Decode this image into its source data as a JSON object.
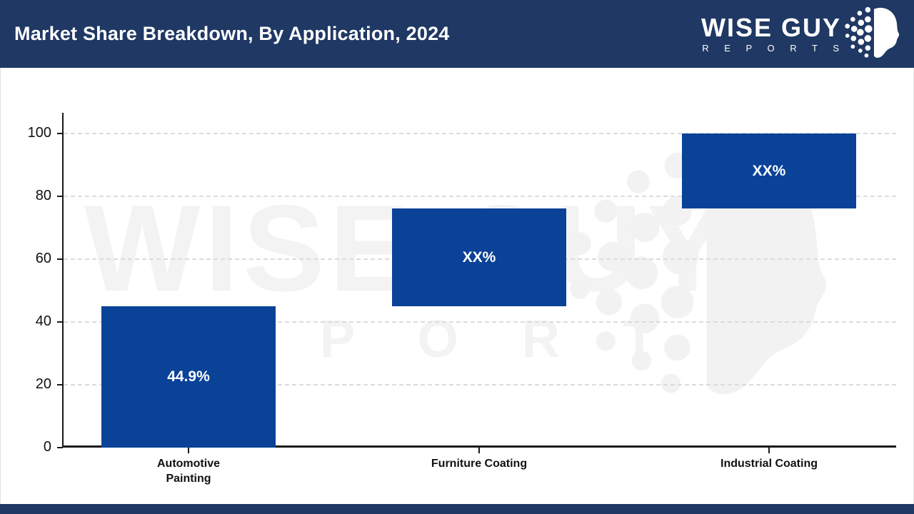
{
  "header": {
    "title": "Market Share Breakdown, By Application, 2024",
    "logo_line1": "WISE GUY",
    "logo_line2": "R E P O R T S"
  },
  "watermark": {
    "line1": "WISE GUY",
    "line2": "R E P O R T S"
  },
  "colors": {
    "header_navy": "#1f3864",
    "bar_blue": "#0a4298",
    "gridline": "#dcdcdc",
    "bar_label": "#ffffff"
  },
  "chart_data": {
    "type": "bar",
    "variant": "floating-waterfall-segments",
    "title": "Market Share Breakdown, By Application, 2024",
    "categories": [
      "Automotive Painting",
      "Furniture Coating",
      "Industrial Coating"
    ],
    "tick_labels": [
      "Automotive\nPainting",
      "Furniture Coating",
      "Industrial Coating"
    ],
    "segments": [
      {
        "category": "Automotive Painting",
        "start": 0,
        "end": 44.9,
        "value": 44.9,
        "label": "44.9%"
      },
      {
        "category": "Furniture Coating",
        "start": 44.9,
        "end": 76.1,
        "value": 31.2,
        "label": "XX%"
      },
      {
        "category": "Industrial Coating",
        "start": 76.1,
        "end": 100,
        "value": 23.9,
        "label": "XX%"
      }
    ],
    "xlabel": "",
    "ylabel": "",
    "ylim": [
      0,
      105
    ],
    "yticks": [
      0,
      20,
      40,
      60,
      80,
      100
    ],
    "grid": "horizontal-dashed",
    "legend": "none"
  }
}
